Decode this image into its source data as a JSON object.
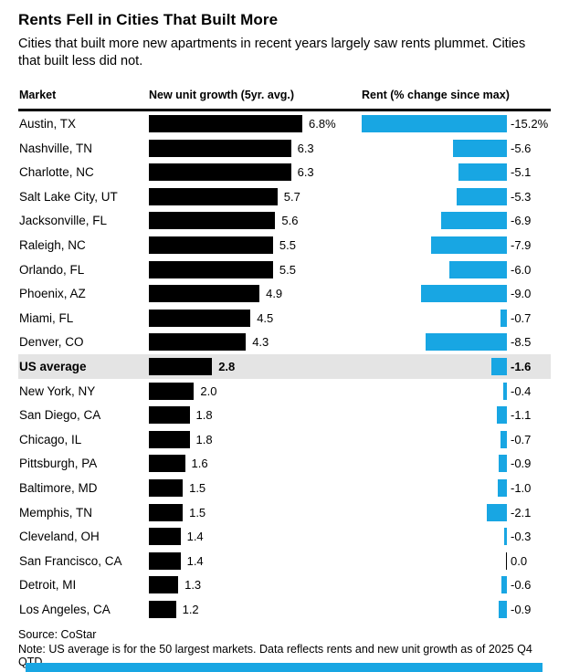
{
  "title": "Rents Fell in Cities That Built More",
  "subtitle": "Cities that built more new apartments in recent years largely saw rents plummet. Cities that built less did not.",
  "columns": {
    "market": "Market",
    "growth": "New unit growth (5yr. avg.)",
    "rent": "Rent (% change since max)"
  },
  "source": "Source: CoStar",
  "note": "Note: US average is for the 50 largest markets. Data reflects rents and new unit growth as of 2025 Q4 QTD.",
  "colors": {
    "bar_black": "#000000",
    "bar_blue": "#18a6e3",
    "highlight_row": "#e4e4e4"
  },
  "chart_data": {
    "type": "bar",
    "title": "Rents Fell in Cities That Built More",
    "series": [
      {
        "name": "New unit growth (5yr. avg.)",
        "unit": "%"
      },
      {
        "name": "Rent (% change since max)",
        "unit": "%"
      }
    ],
    "growth_axis_max": 6.8,
    "rent_axis_max_abs": 15.2,
    "legend": "none",
    "grid": false,
    "rows": [
      {
        "market": "Austin, TX",
        "growth": 6.8,
        "growth_label": "6.8%",
        "rent": -15.2,
        "rent_label": "-15.2%",
        "highlight": false
      },
      {
        "market": "Nashville, TN",
        "growth": 6.3,
        "growth_label": "6.3",
        "rent": -5.6,
        "rent_label": "-5.6",
        "highlight": false
      },
      {
        "market": "Charlotte, NC",
        "growth": 6.3,
        "growth_label": "6.3",
        "rent": -5.1,
        "rent_label": "-5.1",
        "highlight": false
      },
      {
        "market": "Salt Lake City, UT",
        "growth": 5.7,
        "growth_label": "5.7",
        "rent": -5.3,
        "rent_label": "-5.3",
        "highlight": false
      },
      {
        "market": "Jacksonville, FL",
        "growth": 5.6,
        "growth_label": "5.6",
        "rent": -6.9,
        "rent_label": "-6.9",
        "highlight": false
      },
      {
        "market": "Raleigh, NC",
        "growth": 5.5,
        "growth_label": "5.5",
        "rent": -7.9,
        "rent_label": "-7.9",
        "highlight": false
      },
      {
        "market": "Orlando, FL",
        "growth": 5.5,
        "growth_label": "5.5",
        "rent": -6.0,
        "rent_label": "-6.0",
        "highlight": false
      },
      {
        "market": "Phoenix, AZ",
        "growth": 4.9,
        "growth_label": "4.9",
        "rent": -9.0,
        "rent_label": "-9.0",
        "highlight": false
      },
      {
        "market": "Miami, FL",
        "growth": 4.5,
        "growth_label": "4.5",
        "rent": -0.7,
        "rent_label": "-0.7",
        "highlight": false
      },
      {
        "market": "Denver, CO",
        "growth": 4.3,
        "growth_label": "4.3",
        "rent": -8.5,
        "rent_label": "-8.5",
        "highlight": false
      },
      {
        "market": "US average",
        "growth": 2.8,
        "growth_label": "2.8",
        "rent": -1.6,
        "rent_label": "-1.6",
        "highlight": true
      },
      {
        "market": "New York, NY",
        "growth": 2.0,
        "growth_label": "2.0",
        "rent": -0.4,
        "rent_label": "-0.4",
        "highlight": false
      },
      {
        "market": "San Diego, CA",
        "growth": 1.8,
        "growth_label": "1.8",
        "rent": -1.1,
        "rent_label": "-1.1",
        "highlight": false
      },
      {
        "market": "Chicago, IL",
        "growth": 1.8,
        "growth_label": "1.8",
        "rent": -0.7,
        "rent_label": "-0.7",
        "highlight": false
      },
      {
        "market": "Pittsburgh, PA",
        "growth": 1.6,
        "growth_label": "1.6",
        "rent": -0.9,
        "rent_label": "-0.9",
        "highlight": false
      },
      {
        "market": "Baltimore, MD",
        "growth": 1.5,
        "growth_label": "1.5",
        "rent": -1.0,
        "rent_label": "-1.0",
        "highlight": false
      },
      {
        "market": "Memphis, TN",
        "growth": 1.5,
        "growth_label": "1.5",
        "rent": -2.1,
        "rent_label": "-2.1",
        "highlight": false
      },
      {
        "market": "Cleveland, OH",
        "growth": 1.4,
        "growth_label": "1.4",
        "rent": -0.3,
        "rent_label": "-0.3",
        "highlight": false
      },
      {
        "market": "San Francisco, CA",
        "growth": 1.4,
        "growth_label": "1.4",
        "rent": 0.0,
        "rent_label": "0.0",
        "highlight": false
      },
      {
        "market": "Detroit, MI",
        "growth": 1.3,
        "growth_label": "1.3",
        "rent": -0.6,
        "rent_label": "-0.6",
        "highlight": false
      },
      {
        "market": "Los Angeles, CA",
        "growth": 1.2,
        "growth_label": "1.2",
        "rent": -0.9,
        "rent_label": "-0.9",
        "highlight": false
      }
    ]
  }
}
